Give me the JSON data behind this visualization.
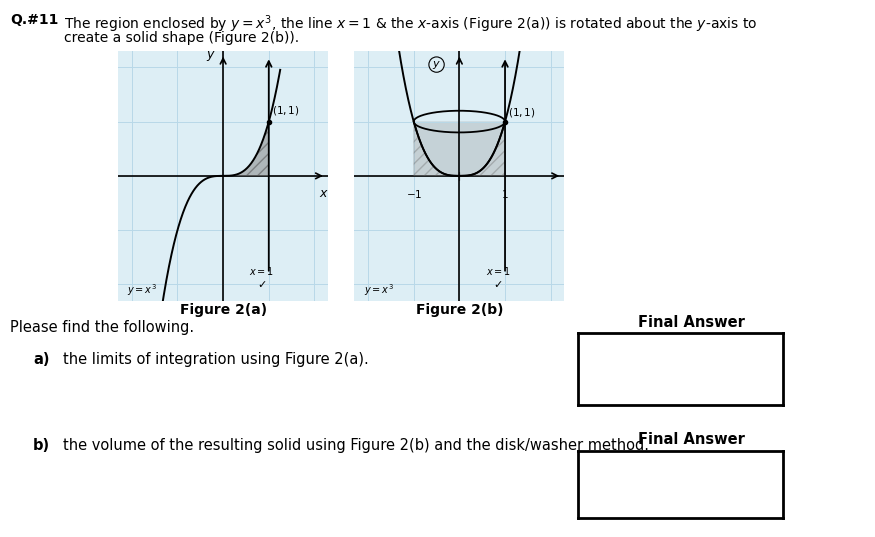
{
  "title_bold": "Q.#11",
  "title_line1": "The region enclosed by $y = x^3$, the line $x = 1$ & the $x$-axis (Figure 2(a)) is rotated about the $y$-axis to",
  "title_line2": "create a solid shape (Figure 2(b)).",
  "fig2a_label": "Figure 2(a)",
  "fig2b_label": "Figure 2(b)",
  "please_find": "Please find the following.",
  "part_a_label": "a)",
  "part_a_text": "the limits of integration using Figure 2(a).",
  "part_b_label": "b)",
  "part_b_text": "the volume of the resulting solid using Figure 2(b) and the disk/washer method.",
  "final_answer_label": "Final Answer",
  "background_color": "#ffffff",
  "grid_color": "#b8d8e8",
  "fig_bg_color": "#ddeef5"
}
